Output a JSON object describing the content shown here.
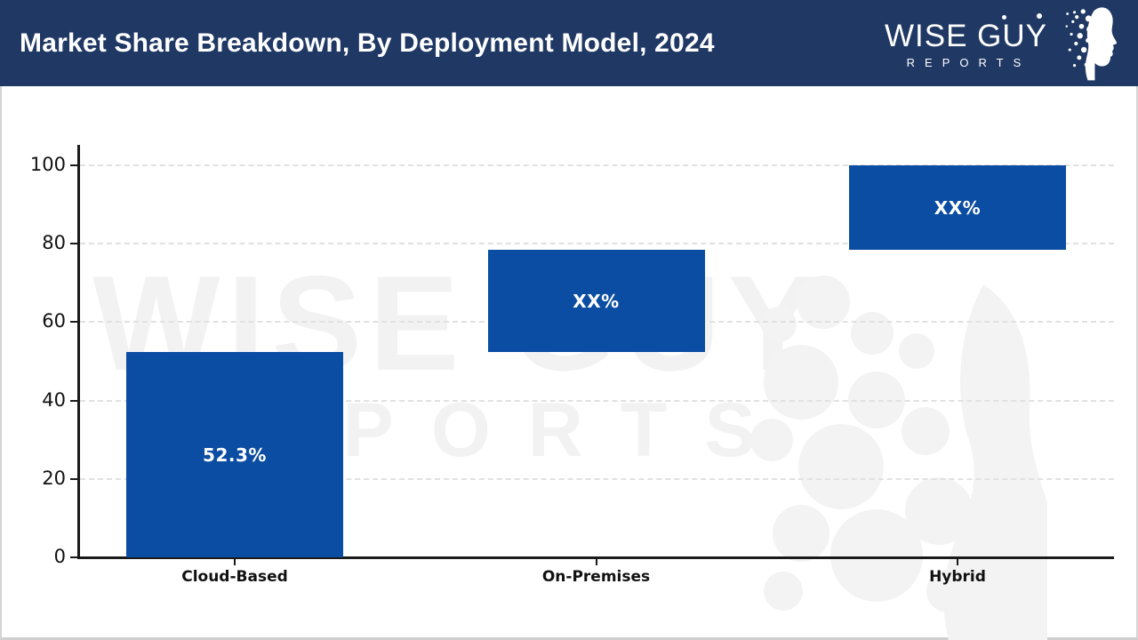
{
  "header": {
    "title": "Market Share Breakdown, By Deployment Model, 2024",
    "bg_color": "#1F3864",
    "logo": {
      "line1": "WISE GUY",
      "line2": "REPORTS"
    }
  },
  "watermark": {
    "line1": "WISE GUY",
    "line2": "REPORTS"
  },
  "chart_data": {
    "type": "bar",
    "subtype": "floating-segment-waterfall",
    "title": "Market Share Breakdown, By Deployment Model, 2024",
    "categories": [
      "Cloud-Based",
      "On-Premises",
      "Hybrid"
    ],
    "segments": [
      {
        "category": "Cloud-Based",
        "start": 0,
        "end": 52.3,
        "label": "52.3%"
      },
      {
        "category": "On-Premises",
        "start": 52.3,
        "end": 78.4,
        "label": "XX%"
      },
      {
        "category": "Hybrid",
        "start": 78.4,
        "end": 100,
        "label": "XX%"
      }
    ],
    "ylim": [
      0,
      100
    ],
    "yticks": [
      0,
      20,
      40,
      60,
      80,
      100
    ],
    "xlabel": "",
    "ylabel": "",
    "grid": "horizontal-dashed",
    "legend": "none",
    "bar_color": "#0B4DA2",
    "bar_label_color": "#FFFFFF",
    "axis_color": "#1a1a1a"
  }
}
